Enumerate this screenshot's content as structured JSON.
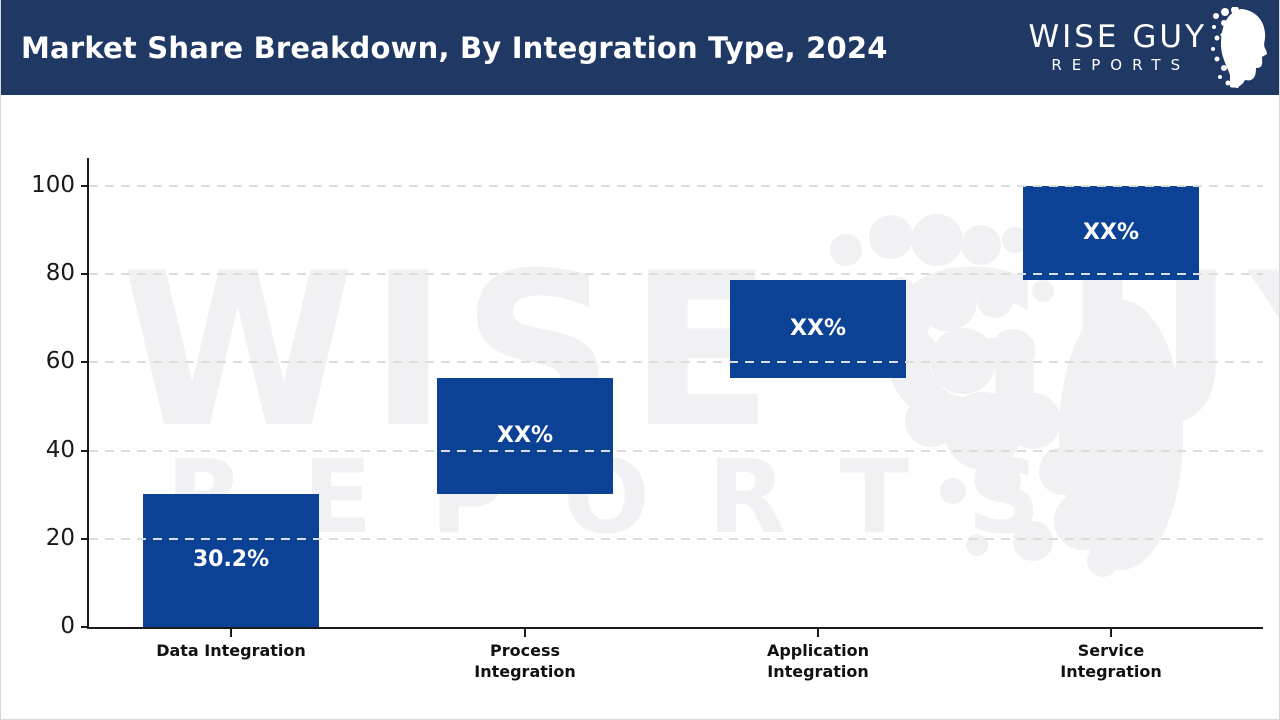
{
  "header": {
    "title": "Market Share Breakdown, By Integration Type, 2024",
    "logo": {
      "line1": "WISE GUY",
      "line2": "REPORTS"
    }
  },
  "watermark": {
    "line1": "WISE GUY",
    "line2": "REPORTS"
  },
  "chart_data": {
    "type": "bar",
    "subtype": "waterfall",
    "title": "Market Share Breakdown, By Integration Type, 2024",
    "categories": [
      "Data Integration",
      "Process Integration",
      "Application Integration",
      "Service Integration"
    ],
    "category_lines": [
      [
        "Data Integration"
      ],
      [
        "Process",
        "Integration"
      ],
      [
        "Application",
        "Integration"
      ],
      [
        "Service",
        "Integration"
      ]
    ],
    "series": [
      {
        "name": "Market Share",
        "segments": [
          {
            "category": "Data Integration",
            "start": 0,
            "end": 30.2,
            "label": "30.2%"
          },
          {
            "category": "Process Integration",
            "start": 30.2,
            "end": 56.5,
            "label": "XX%"
          },
          {
            "category": "Application Integration",
            "start": 56.5,
            "end": 78.7,
            "label": "XX%"
          },
          {
            "category": "Service Integration",
            "start": 78.7,
            "end": 100,
            "label": "XX%"
          }
        ]
      }
    ],
    "xlabel": "",
    "ylabel": "",
    "ylim": [
      0,
      100
    ],
    "yticks": [
      0,
      20,
      40,
      60,
      80,
      100
    ],
    "grid": "horizontal-dashed",
    "legend": "none",
    "bar_color": "#0b4295",
    "bar_label_color": "#ffffff",
    "header_color": "#203864",
    "axis_color": "#1a1a1a",
    "gridline_color": "#dcdcdc"
  }
}
